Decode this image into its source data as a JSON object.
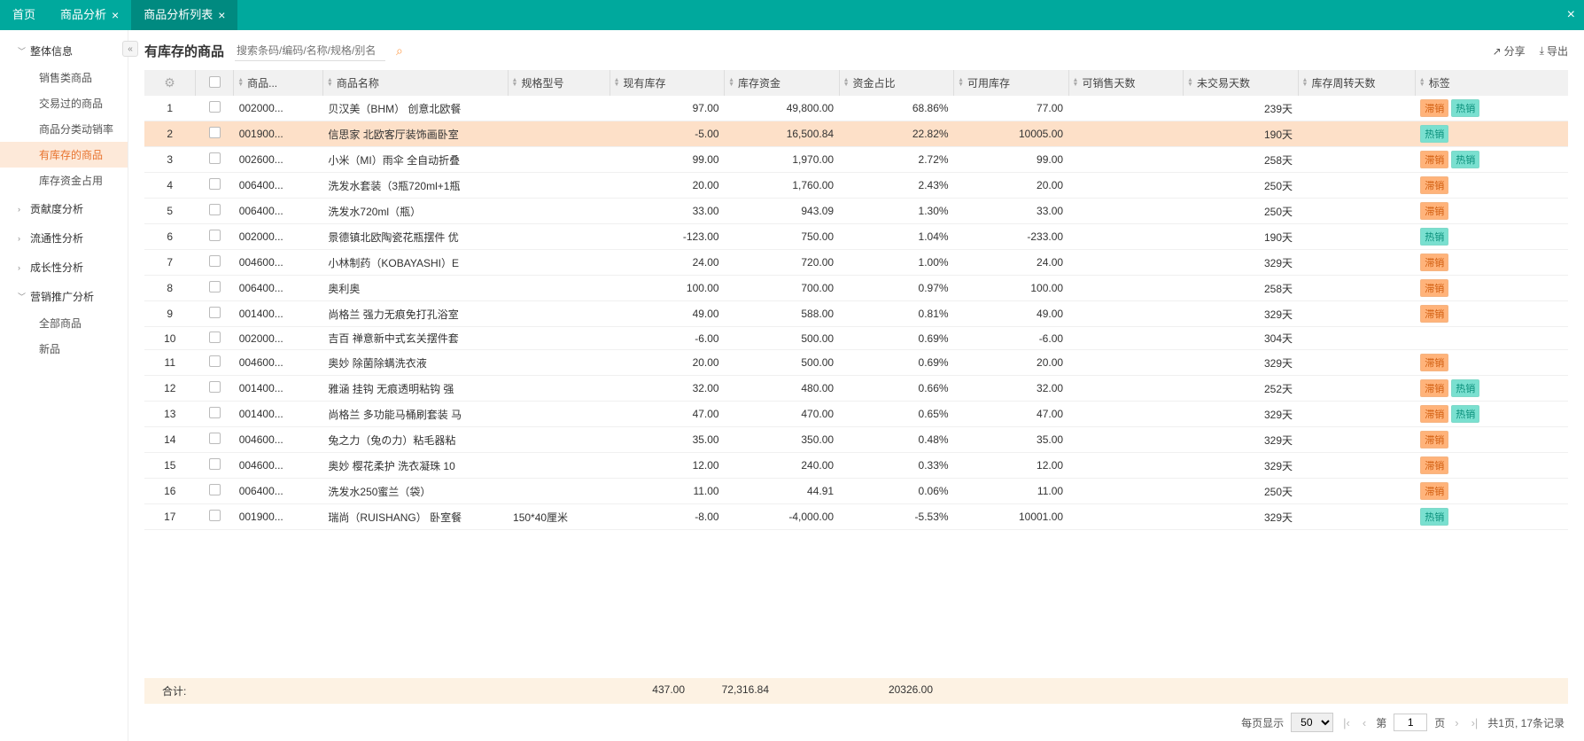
{
  "tabs": [
    {
      "label": "首页",
      "closable": false,
      "active": false
    },
    {
      "label": "商品分析",
      "closable": true,
      "active": false
    },
    {
      "label": "商品分析列表",
      "closable": true,
      "active": true
    }
  ],
  "sidebar": {
    "groups": [
      {
        "title": "整体信息",
        "expanded": true,
        "items": [
          {
            "label": "销售类商品",
            "active": false
          },
          {
            "label": "交易过的商品",
            "active": false
          },
          {
            "label": "商品分类动销率",
            "active": false
          },
          {
            "label": "有库存的商品",
            "active": true
          },
          {
            "label": "库存资金占用",
            "active": false
          }
        ]
      },
      {
        "title": "贡献度分析",
        "expanded": false,
        "items": []
      },
      {
        "title": "流通性分析",
        "expanded": false,
        "items": []
      },
      {
        "title": "成长性分析",
        "expanded": false,
        "items": []
      },
      {
        "title": "营销推广分析",
        "expanded": true,
        "items": [
          {
            "label": "全部商品",
            "active": false
          },
          {
            "label": "新品",
            "active": false
          }
        ]
      }
    ]
  },
  "page": {
    "title": "有库存的商品",
    "search_placeholder": "搜索条码/编码/名称/规格/别名",
    "share_label": "分享",
    "export_label": "导出"
  },
  "columns": [
    "商品...",
    "商品名称",
    "规格型号",
    "现有库存",
    "库存资金",
    "资金占比",
    "可用库存",
    "可销售天数",
    "未交易天数",
    "库存周转天数",
    "标签"
  ],
  "rows": [
    {
      "idx": 1,
      "code": "002000...",
      "name": "贝汉美（BHM） 创意北欧餐",
      "spec": "",
      "stock": "97.00",
      "fund": "49,800.00",
      "pct": "68.86%",
      "avail": "77.00",
      "saleDays": "",
      "noTrade": "239天",
      "turnDays": "",
      "tags": [
        "滞销",
        "热销"
      ],
      "hl": false
    },
    {
      "idx": 2,
      "code": "001900...",
      "name": "信思家 北欧客厅装饰画卧室",
      "spec": "",
      "stock": "-5.00",
      "fund": "16,500.84",
      "pct": "22.82%",
      "avail": "10005.00",
      "saleDays": "",
      "noTrade": "190天",
      "turnDays": "",
      "tags": [
        "热销"
      ],
      "hl": true
    },
    {
      "idx": 3,
      "code": "002600...",
      "name": "小米（MI）雨伞 全自动折叠",
      "spec": "",
      "stock": "99.00",
      "fund": "1,970.00",
      "pct": "2.72%",
      "avail": "99.00",
      "saleDays": "",
      "noTrade": "258天",
      "turnDays": "",
      "tags": [
        "滞销",
        "热销"
      ],
      "hl": false
    },
    {
      "idx": 4,
      "code": "006400...",
      "name": "洗发水套装（3瓶720ml+1瓶",
      "spec": "",
      "stock": "20.00",
      "fund": "1,760.00",
      "pct": "2.43%",
      "avail": "20.00",
      "saleDays": "",
      "noTrade": "250天",
      "turnDays": "",
      "tags": [
        "滞销"
      ],
      "hl": false
    },
    {
      "idx": 5,
      "code": "006400...",
      "name": "洗发水720ml（瓶）",
      "spec": "",
      "stock": "33.00",
      "fund": "943.09",
      "pct": "1.30%",
      "avail": "33.00",
      "saleDays": "",
      "noTrade": "250天",
      "turnDays": "",
      "tags": [
        "滞销"
      ],
      "hl": false
    },
    {
      "idx": 6,
      "code": "002000...",
      "name": "景德镇北欧陶瓷花瓶摆件 优",
      "spec": "",
      "stock": "-123.00",
      "fund": "750.00",
      "pct": "1.04%",
      "avail": "-233.00",
      "saleDays": "",
      "noTrade": "190天",
      "turnDays": "",
      "tags": [
        "热销"
      ],
      "hl": false
    },
    {
      "idx": 7,
      "code": "004600...",
      "name": "小林制药（KOBAYASHI）E",
      "spec": "",
      "stock": "24.00",
      "fund": "720.00",
      "pct": "1.00%",
      "avail": "24.00",
      "saleDays": "",
      "noTrade": "329天",
      "turnDays": "",
      "tags": [
        "滞销"
      ],
      "hl": false
    },
    {
      "idx": 8,
      "code": "006400...",
      "name": "奥利奥",
      "spec": "",
      "stock": "100.00",
      "fund": "700.00",
      "pct": "0.97%",
      "avail": "100.00",
      "saleDays": "",
      "noTrade": "258天",
      "turnDays": "",
      "tags": [
        "滞销"
      ],
      "hl": false
    },
    {
      "idx": 9,
      "code": "001400...",
      "name": "尚格兰 强力无痕免打孔浴室",
      "spec": "",
      "stock": "49.00",
      "fund": "588.00",
      "pct": "0.81%",
      "avail": "49.00",
      "saleDays": "",
      "noTrade": "329天",
      "turnDays": "",
      "tags": [
        "滞销"
      ],
      "hl": false
    },
    {
      "idx": 10,
      "code": "002000...",
      "name": "吉百 禅意新中式玄关摆件套",
      "spec": "",
      "stock": "-6.00",
      "fund": "500.00",
      "pct": "0.69%",
      "avail": "-6.00",
      "saleDays": "",
      "noTrade": "304天",
      "turnDays": "",
      "tags": [],
      "hl": false
    },
    {
      "idx": 11,
      "code": "004600...",
      "name": "奥妙 除菌除螨洗衣液",
      "spec": "",
      "stock": "20.00",
      "fund": "500.00",
      "pct": "0.69%",
      "avail": "20.00",
      "saleDays": "",
      "noTrade": "329天",
      "turnDays": "",
      "tags": [
        "滞销"
      ],
      "hl": false
    },
    {
      "idx": 12,
      "code": "001400...",
      "name": "雅涵 挂钩 无痕透明粘钩 强",
      "spec": "",
      "stock": "32.00",
      "fund": "480.00",
      "pct": "0.66%",
      "avail": "32.00",
      "saleDays": "",
      "noTrade": "252天",
      "turnDays": "",
      "tags": [
        "滞销",
        "热销"
      ],
      "hl": false
    },
    {
      "idx": 13,
      "code": "001400...",
      "name": "尚格兰 多功能马桶刷套装 马",
      "spec": "",
      "stock": "47.00",
      "fund": "470.00",
      "pct": "0.65%",
      "avail": "47.00",
      "saleDays": "",
      "noTrade": "329天",
      "turnDays": "",
      "tags": [
        "滞销",
        "热销"
      ],
      "hl": false
    },
    {
      "idx": 14,
      "code": "004600...",
      "name": "兔之力（兔の力）粘毛器粘",
      "spec": "",
      "stock": "35.00",
      "fund": "350.00",
      "pct": "0.48%",
      "avail": "35.00",
      "saleDays": "",
      "noTrade": "329天",
      "turnDays": "",
      "tags": [
        "滞销"
      ],
      "hl": false
    },
    {
      "idx": 15,
      "code": "004600...",
      "name": "奥妙 樱花柔护 洗衣凝珠 10",
      "spec": "",
      "stock": "12.00",
      "fund": "240.00",
      "pct": "0.33%",
      "avail": "12.00",
      "saleDays": "",
      "noTrade": "329天",
      "turnDays": "",
      "tags": [
        "滞销"
      ],
      "hl": false
    },
    {
      "idx": 16,
      "code": "006400...",
      "name": "洗发水250蜜兰（袋）",
      "spec": "",
      "stock": "11.00",
      "fund": "44.91",
      "pct": "0.06%",
      "avail": "11.00",
      "saleDays": "",
      "noTrade": "250天",
      "turnDays": "",
      "tags": [
        "滞销"
      ],
      "hl": false
    },
    {
      "idx": 17,
      "code": "001900...",
      "name": "瑞尚（RUISHANG） 卧室餐",
      "spec": "150*40厘米",
      "stock": "-8.00",
      "fund": "-4,000.00",
      "pct": "-5.53%",
      "avail": "10001.00",
      "saleDays": "",
      "noTrade": "329天",
      "turnDays": "",
      "tags": [
        "热销"
      ],
      "hl": false
    }
  ],
  "totals": {
    "label": "合计:",
    "stock": "437.00",
    "fund": "72,316.84",
    "avail": "20326.00"
  },
  "pager": {
    "per_page_label": "每页显示",
    "per_page_value": "50",
    "prefix": "第",
    "page_value": "1",
    "suffix": "页",
    "summary": "共1页, 17条记录"
  },
  "colors": {
    "brand": "#00a99d",
    "brand_dark": "#008a80",
    "active_bg": "#fde9d9",
    "active_fg": "#e8732e",
    "row_hl": "#fde0c8",
    "totals_bg": "#fdf2e3",
    "tag_orange": "#ff9c4a",
    "tag_teal": "#3cc9b3"
  }
}
